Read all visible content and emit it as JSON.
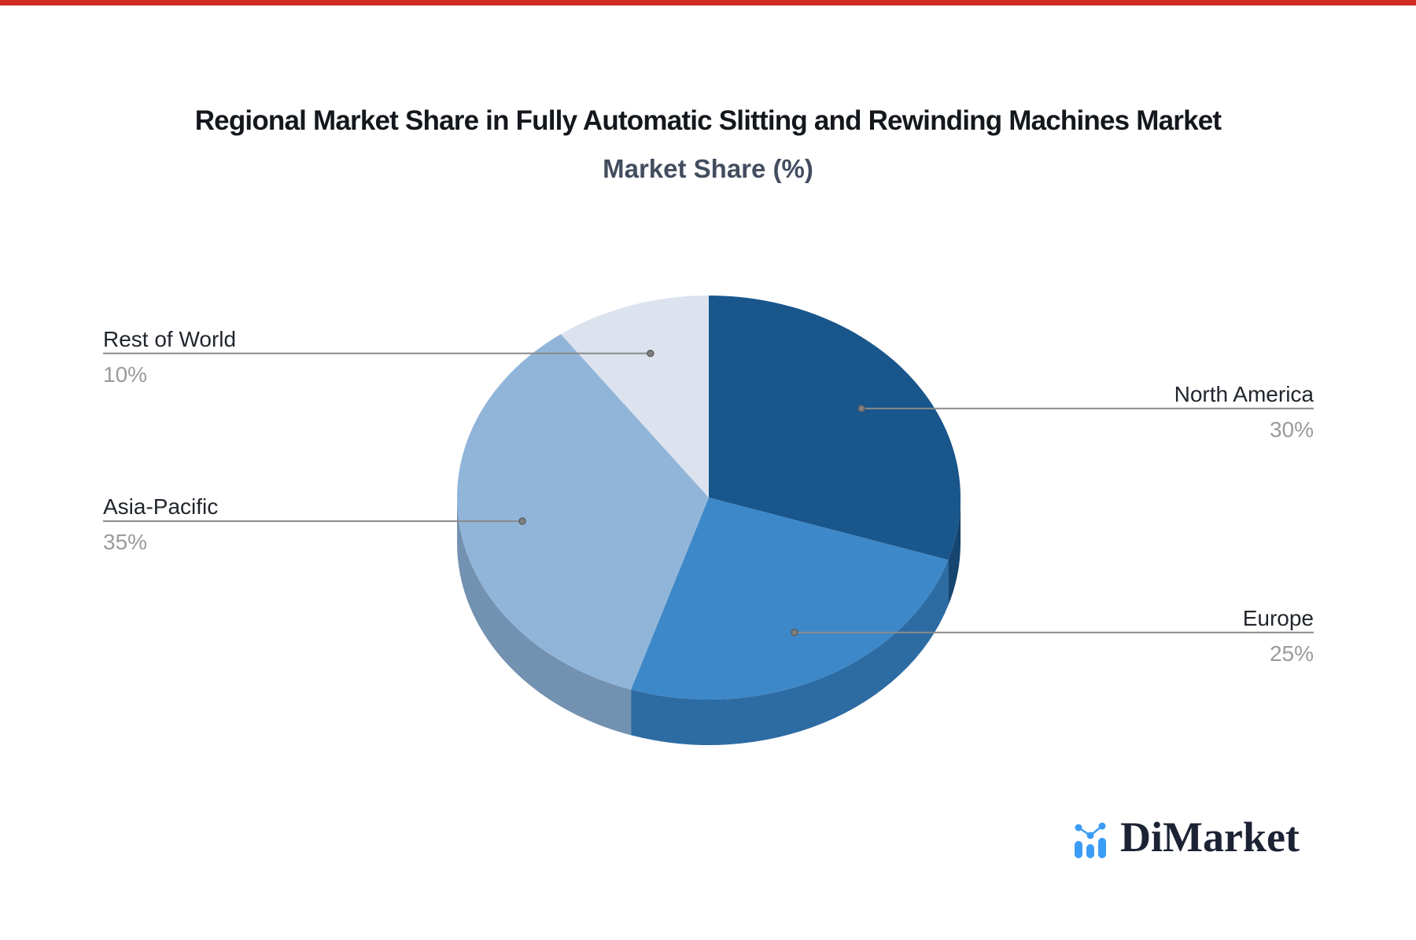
{
  "accent_bar_color": "#d02c23",
  "header": {
    "title": "Regional Market Share in Fully Automatic Slitting and Rewinding Machines Market",
    "subtitle": "Market Share (%)"
  },
  "chart_data": {
    "type": "pie",
    "style": "3d",
    "title": "Regional Market Share in Fully Automatic Slitting and Rewinding Machines Market",
    "subtitle": "Market Share (%)",
    "unit": "%",
    "start_angle_deg": 0,
    "direction": "clockwise",
    "legend_position": "callout-labels",
    "segments": [
      {
        "label": "North America",
        "value": 30,
        "display": "30%",
        "color": "#19568c",
        "side_color": "#164570"
      },
      {
        "label": "Europe",
        "value": 25,
        "display": "25%",
        "color": "#3d88c8",
        "side_color": "#2d6ba3"
      },
      {
        "label": "Asia-Pacific",
        "value": 35,
        "display": "35%",
        "color": "#91b5d9",
        "side_color": "#7391b0"
      },
      {
        "label": "Rest of World",
        "value": 10,
        "display": "10%",
        "color": "#dce3ee",
        "side_color": "#b9c4d4"
      }
    ],
    "callout": {
      "line_color": "#8a8a8a",
      "dot_fill": "#808080",
      "dot_stroke": "#5f5f5f"
    },
    "label_text_color": "#21262d",
    "value_text_color": "#9b9b9b"
  },
  "brand": {
    "name": "DiMarket",
    "icon": "bar-chart-logo-icon",
    "text_color": "#1b2334",
    "icon_color": "#3b9cf6"
  }
}
